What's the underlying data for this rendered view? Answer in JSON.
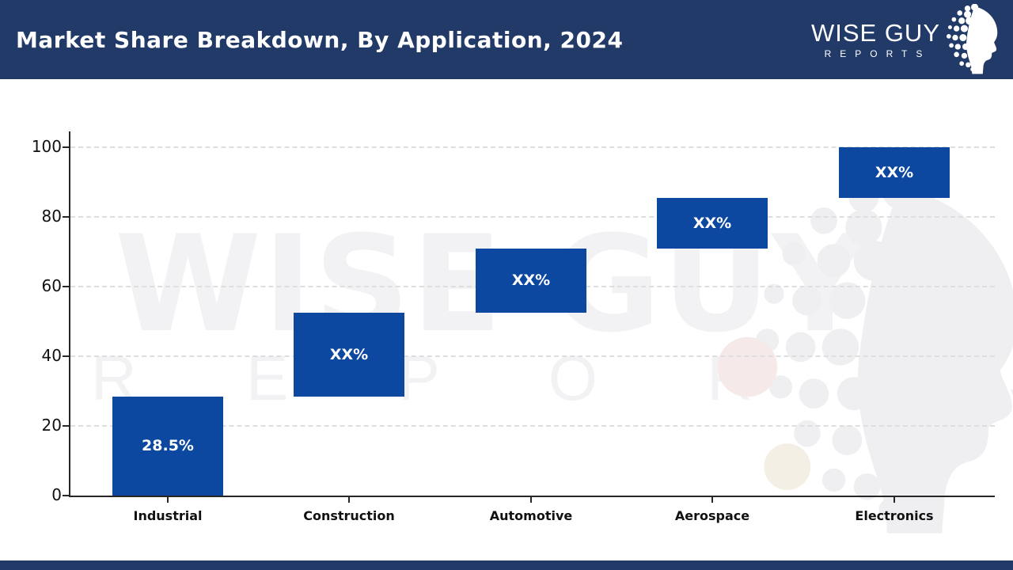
{
  "header": {
    "title": "Market Share Breakdown, By Application, 2024",
    "logo": {
      "line1": "WISE GUY",
      "line2": "REPORTS",
      "head_icon": "wiseguy-head-icon"
    }
  },
  "watermark": {
    "line1": "WISE GUY",
    "line2": "REPORTS",
    "head_icon": "wiseguy-head-watermark-icon"
  },
  "colors": {
    "header_bg": "#213a68",
    "footer_bg": "#213a68",
    "bar_fill": "#0c47a0",
    "bar_label": "#ffffff",
    "gridline": "#dedede",
    "axis": "#262626",
    "watermark": "#f2f2f5"
  },
  "chart_data": {
    "type": "bar",
    "subtype": "waterfall",
    "title": "Market Share Breakdown, By Application, 2024",
    "categories": [
      "Industrial",
      "Construction",
      "Automotive",
      "Aerospace",
      "Electronics"
    ],
    "segments": [
      {
        "category": "Industrial",
        "start": 0,
        "end": 28.5,
        "label": "28.5%"
      },
      {
        "category": "Construction",
        "start": 28.5,
        "end": 52.5,
        "label": "XX%"
      },
      {
        "category": "Automotive",
        "start": 52.5,
        "end": 71,
        "label": "XX%"
      },
      {
        "category": "Aerospace",
        "start": 71,
        "end": 85.5,
        "label": "XX%"
      },
      {
        "category": "Electronics",
        "start": 85.5,
        "end": 100,
        "label": "XX%"
      }
    ],
    "y_ticks": [
      0,
      20,
      40,
      60,
      80,
      100
    ],
    "ylim": [
      0,
      105
    ],
    "xlabel": "",
    "ylabel": "",
    "grid": "horizontal-dashed",
    "legend": "none"
  }
}
